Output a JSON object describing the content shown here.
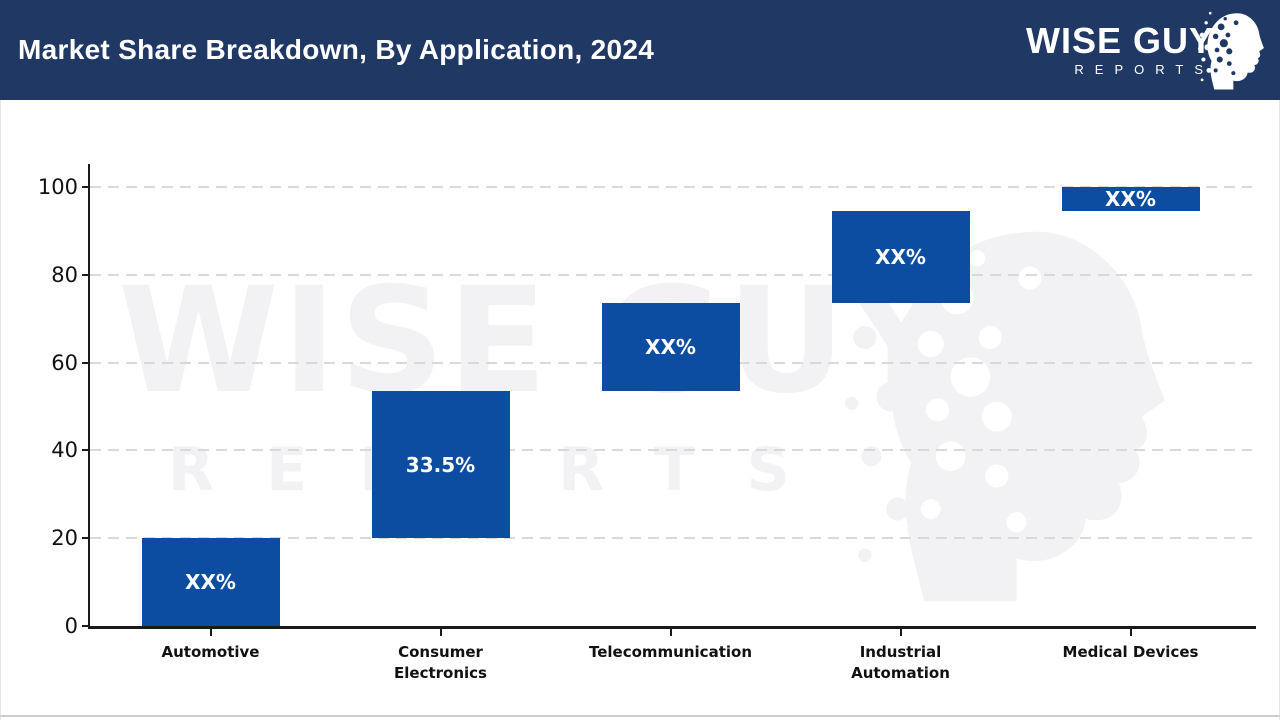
{
  "header": {
    "title": "Market Share Breakdown, By Application, 2024",
    "logo": {
      "name": "WISE GUY",
      "sub": "REPORTS"
    }
  },
  "watermark": {
    "line1": "WISE GUY",
    "line2": "REPORTS"
  },
  "colors": {
    "header_bg": "#203864",
    "bar_blue": "#0C4DA2",
    "grid_gray": "#d9d9d9",
    "axis_black": "#1a1a1a",
    "value_label_white": "#ffffff",
    "watermark_gray": "#f2f2f4",
    "bottom_rule_gray": "#cccccc"
  },
  "chart_data": {
    "type": "waterfall",
    "title": "Market Share Breakdown, By Application, 2024",
    "units": "%",
    "categories": [
      "Automotive",
      "Consumer\nElectronics",
      "Telecommunication",
      "Industrial\nAutomation",
      "Medical Devices"
    ],
    "bars": [
      {
        "category": "Automotive",
        "start": 0,
        "end": 20,
        "label": "XX%"
      },
      {
        "category": "Consumer\nElectronics",
        "start": 20,
        "end": 53.5,
        "label": "33.5%"
      },
      {
        "category": "Telecommunication",
        "start": 53.5,
        "end": 73.5,
        "label": "XX%"
      },
      {
        "category": "Industrial\nAutomation",
        "start": 73.5,
        "end": 94.5,
        "label": "XX%"
      },
      {
        "category": "Medical Devices",
        "start": 94.5,
        "end": 100,
        "label": "XX%"
      }
    ],
    "ylim": [
      0,
      100
    ],
    "yticks": [
      0,
      20,
      40,
      60,
      80,
      100
    ],
    "xlabel": "",
    "ylabel": "",
    "grid": "horizontal-dashed",
    "legend": "none",
    "bar_color": "#0C4DA2"
  }
}
